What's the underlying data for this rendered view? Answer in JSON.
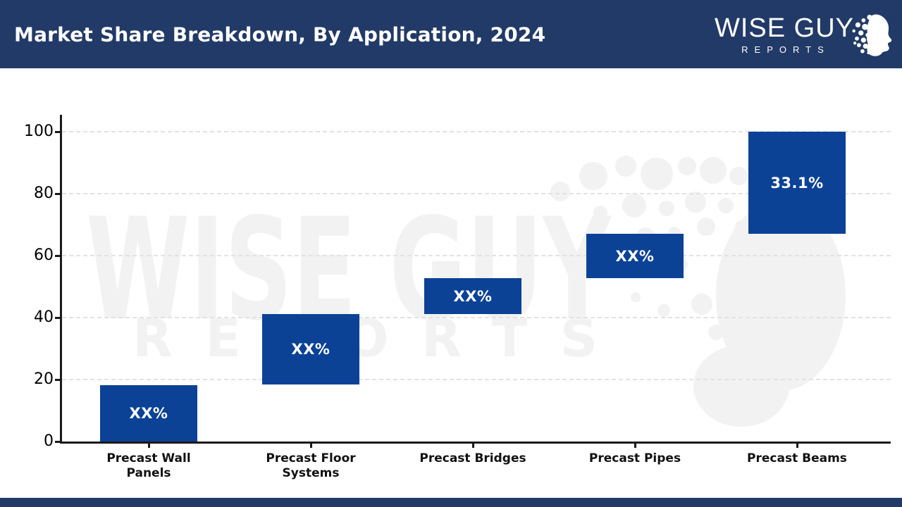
{
  "header": {
    "title": "Market Share Breakdown, By Application, 2024"
  },
  "logo": {
    "name": "WISE GUY",
    "reports": "REPORTS"
  },
  "watermark": {
    "line1": "WISE GUY",
    "line2": "REPORTS"
  },
  "chart_data": {
    "type": "bar",
    "subtype": "floating-segment-waterfall",
    "title": "Market Share Breakdown, By Application, 2024",
    "categories": [
      "Precast Wall Panels",
      "Precast Floor Systems",
      "Precast Bridges",
      "Precast Pipes",
      "Precast Beams"
    ],
    "category_label_lines": [
      [
        "Precast Wall",
        "Panels"
      ],
      [
        "Precast Floor",
        "Systems"
      ],
      [
        "Precast Bridges"
      ],
      [
        "Precast Pipes"
      ],
      [
        "Precast Beams"
      ]
    ],
    "segments": [
      {
        "category": "Precast Wall Panels",
        "start": 0,
        "end": 18.2,
        "label": "XX%"
      },
      {
        "category": "Precast Floor Systems",
        "start": 18.3,
        "end": 41.1,
        "label": "XX%"
      },
      {
        "category": "Precast Bridges",
        "start": 41.1,
        "end": 52.7,
        "label": "XX%"
      },
      {
        "category": "Precast Pipes",
        "start": 52.7,
        "end": 67.0,
        "label": "XX%"
      },
      {
        "category": "Precast Beams",
        "start": 67.0,
        "end": 100.0,
        "label": "33.1%"
      }
    ],
    "ylim": [
      0,
      100
    ],
    "yticks": [
      0,
      20,
      40,
      60,
      80,
      100
    ],
    "xlabel": "",
    "ylabel": "",
    "grid": "horizontal-dashed",
    "legend": "none",
    "colors": {
      "bar": "#0b4296",
      "bar_label": "#ffffff",
      "header_bg": "#223a67",
      "grid_line": "#e2e2e2",
      "axis": "#1a1a1a",
      "watermark": "#f2f2f2"
    }
  }
}
